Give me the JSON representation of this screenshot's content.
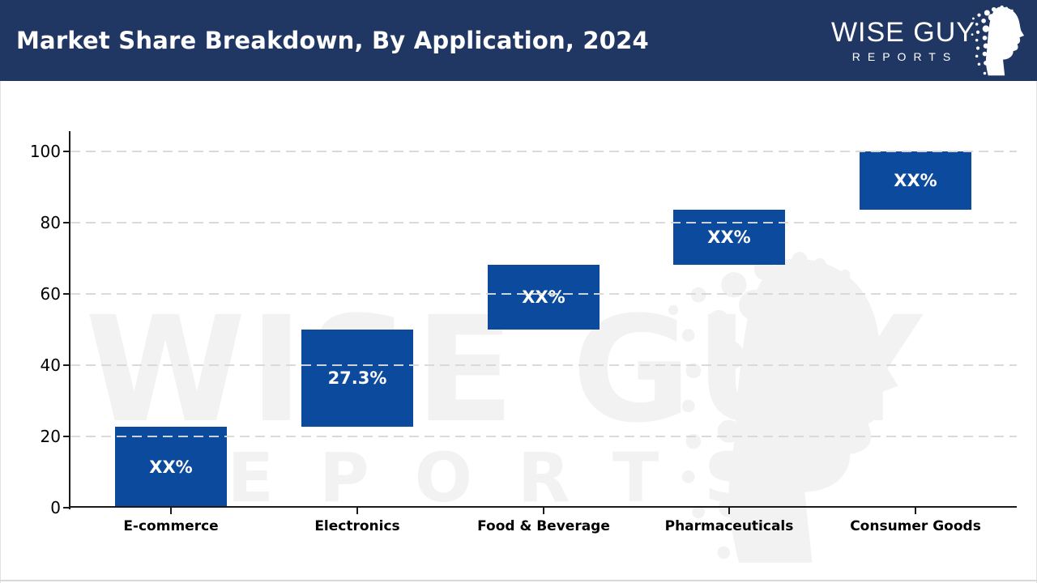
{
  "header": {
    "title": "Market Share Breakdown, By Application, 2024",
    "bg_color": "#213763",
    "logo": {
      "line1": "WISE GUY",
      "line2": "REPORTS"
    }
  },
  "watermark": {
    "line1": "WISE GUY",
    "line2": "REPORTS"
  },
  "chart_data": {
    "type": "bar",
    "subtype": "waterfall-stacked-steps",
    "title": "Market Share Breakdown, By Application, 2024",
    "categories": [
      "E-commerce",
      "Electronics",
      "Food & Beverage",
      "Pharmaceuticals",
      "Consumer Goods"
    ],
    "values": [
      22.7,
      27.3,
      18.2,
      15.5,
      16.3
    ],
    "labels": [
      "XX%",
      "27.3%",
      "XX%",
      "XX%",
      "XX%"
    ],
    "segments": [
      {
        "category": "E-commerce",
        "start": 0,
        "end": 22.7,
        "label": "XX%"
      },
      {
        "category": "Electronics",
        "start": 22.7,
        "end": 50.0,
        "label": "27.3%"
      },
      {
        "category": "Food & Beverage",
        "start": 50.0,
        "end": 68.2,
        "label": "XX%"
      },
      {
        "category": "Pharmaceuticals",
        "start": 68.2,
        "end": 83.7,
        "label": "XX%"
      },
      {
        "category": "Consumer Goods",
        "start": 83.7,
        "end": 100,
        "label": "XX%"
      }
    ],
    "xlabel": "",
    "ylabel": "",
    "ylim": [
      0,
      100
    ],
    "yticks": [
      0,
      20,
      40,
      60,
      80,
      100
    ],
    "grid": "horizontal-dashed",
    "legend": "none",
    "bar_color": "#0c4a9e",
    "gridline_color": "#d8d8d8",
    "axis_color": "#1a1a1a"
  }
}
